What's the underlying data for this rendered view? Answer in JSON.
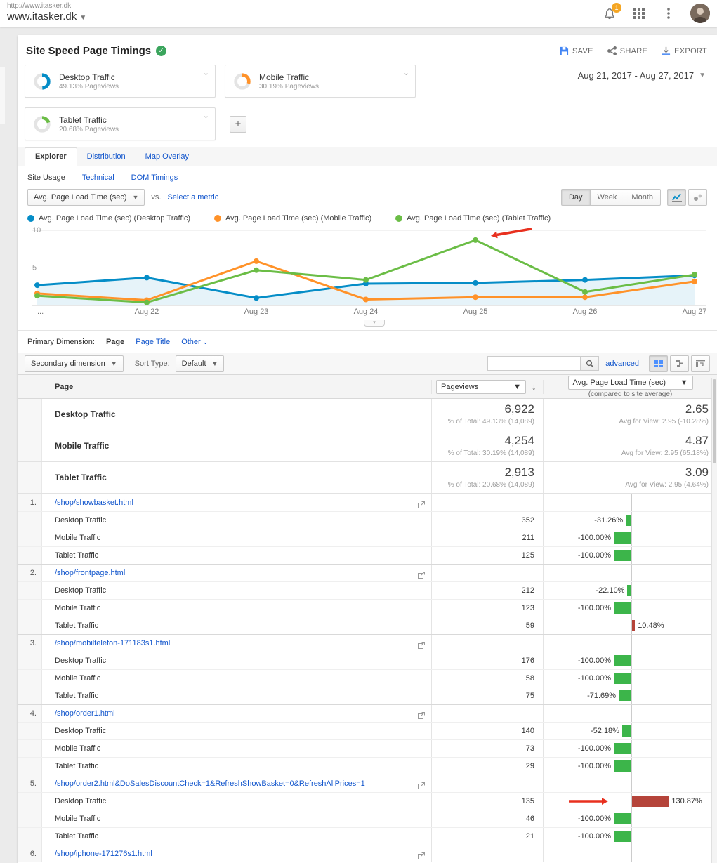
{
  "topbar": {
    "url": "http://www.itasker.dk",
    "account": "www.itasker.dk",
    "notification_badge": "1"
  },
  "header": {
    "title": "Site Speed Page Timings",
    "save": "SAVE",
    "share": "SHARE",
    "export": "EXPORT"
  },
  "date_range": "Aug 21, 2017 - Aug 27, 2017",
  "segments": [
    {
      "name": "Desktop Traffic",
      "detail": "49.13% Pageviews",
      "pct": 49.13,
      "color": "#058dc7"
    },
    {
      "name": "Mobile Traffic",
      "detail": "30.19% Pageviews",
      "pct": 30.19,
      "color": "#ff9229"
    },
    {
      "name": "Tablet Traffic",
      "detail": "20.68% Pageviews",
      "pct": 20.68,
      "color": "#6bbd46"
    }
  ],
  "tabs": {
    "explorer": "Explorer",
    "distribution": "Distribution",
    "map_overlay": "Map Overlay"
  },
  "subtabs": {
    "site_usage": "Site Usage",
    "technical": "Technical",
    "dom_timings": "DOM Timings"
  },
  "metric_bar": {
    "metric_selector": "Avg. Page Load Time (sec)",
    "vs_label": "vs.",
    "select_metric": "Select a metric",
    "granularity": [
      "Day",
      "Week",
      "Month"
    ],
    "active_granularity": "Day"
  },
  "chart_data": {
    "type": "line",
    "title": "Avg. Page Load Time (sec) by day",
    "x": [
      "...",
      "Aug 22",
      "Aug 23",
      "Aug 24",
      "Aug 25",
      "Aug 26",
      "Aug 27"
    ],
    "ylim": [
      0,
      10
    ],
    "yticks": [
      5,
      10
    ],
    "grid": true,
    "legend_position": "top",
    "series": [
      {
        "name": "Avg. Page Load Time (sec) (Desktop Traffic)",
        "color": "#058dc7",
        "area": true,
        "values": [
          2.7,
          3.7,
          1.0,
          2.9,
          3.0,
          3.4,
          4.0
        ]
      },
      {
        "name": "Avg. Page Load Time (sec) (Mobile Traffic)",
        "color": "#ff9229",
        "area": false,
        "values": [
          1.6,
          0.7,
          5.9,
          0.8,
          1.1,
          1.1,
          3.2
        ]
      },
      {
        "name": "Avg. Page Load Time (sec) (Tablet Traffic)",
        "color": "#6bbd46",
        "area": false,
        "values": [
          1.3,
          0.4,
          4.7,
          3.4,
          8.7,
          1.8,
          4.1
        ]
      }
    ],
    "annotation": {
      "type": "arrow",
      "color": "#e8301f",
      "series": 2,
      "index": 4,
      "note": "red arrow pointing at Tablet Traffic peak on Aug 25"
    }
  },
  "primary_dimension": {
    "label": "Primary Dimension:",
    "options": [
      "Page",
      "Page Title",
      "Other"
    ],
    "active": "Page"
  },
  "toolbar": {
    "secondary_dimension": "Secondary dimension",
    "sort_type_label": "Sort Type:",
    "sort_type_value": "Default",
    "search_value": "",
    "advanced": "advanced"
  },
  "table": {
    "columns": {
      "page": "Page",
      "pageviews": "Pageviews",
      "metric": "Avg. Page Load Time (sec)",
      "metric_sub": "(compared to site average)"
    },
    "bar_negative_color": "#3cb54a",
    "bar_positive_color": "#b5443a",
    "summary_rows": [
      {
        "name": "Desktop Traffic",
        "pageviews": "6,922",
        "pageviews_sub": "% of Total: 49.13% (14,089)",
        "value": "2.65",
        "value_sub": "Avg for View: 2.95 (-10.28%)"
      },
      {
        "name": "Mobile Traffic",
        "pageviews": "4,254",
        "pageviews_sub": "% of Total: 30.19% (14,089)",
        "value": "4.87",
        "value_sub": "Avg for View: 2.95 (65.18%)"
      },
      {
        "name": "Tablet Traffic",
        "pageviews": "2,913",
        "pageviews_sub": "% of Total: 20.68% (14,089)",
        "value": "3.09",
        "value_sub": "Avg for View: 2.95 (4.64%)"
      }
    ],
    "groups": [
      {
        "num": "1.",
        "page": "/shop/showbasket.html",
        "rows": [
          {
            "segment": "Desktop Traffic",
            "pageviews": "352",
            "pct": -31.26,
            "pct_label": "-31.26%"
          },
          {
            "segment": "Mobile Traffic",
            "pageviews": "211",
            "pct": -100,
            "pct_label": "-100.00%"
          },
          {
            "segment": "Tablet Traffic",
            "pageviews": "125",
            "pct": -100,
            "pct_label": "-100.00%"
          }
        ]
      },
      {
        "num": "2.",
        "page": "/shop/frontpage.html",
        "rows": [
          {
            "segment": "Desktop Traffic",
            "pageviews": "212",
            "pct": -22.1,
            "pct_label": "-22.10%"
          },
          {
            "segment": "Mobile Traffic",
            "pageviews": "123",
            "pct": -100,
            "pct_label": "-100.00%"
          },
          {
            "segment": "Tablet Traffic",
            "pageviews": "59",
            "pct": 10.48,
            "pct_label": "10.48%"
          }
        ]
      },
      {
        "num": "3.",
        "page": "/shop/mobiltelefon-171183s1.html",
        "rows": [
          {
            "segment": "Desktop Traffic",
            "pageviews": "176",
            "pct": -100,
            "pct_label": "-100.00%"
          },
          {
            "segment": "Mobile Traffic",
            "pageviews": "58",
            "pct": -100,
            "pct_label": "-100.00%"
          },
          {
            "segment": "Tablet Traffic",
            "pageviews": "75",
            "pct": -71.69,
            "pct_label": "-71.69%"
          }
        ]
      },
      {
        "num": "4.",
        "page": "/shop/order1.html",
        "rows": [
          {
            "segment": "Desktop Traffic",
            "pageviews": "140",
            "pct": -52.18,
            "pct_label": "-52.18%"
          },
          {
            "segment": "Mobile Traffic",
            "pageviews": "73",
            "pct": -100,
            "pct_label": "-100.00%"
          },
          {
            "segment": "Tablet Traffic",
            "pageviews": "29",
            "pct": -100,
            "pct_label": "-100.00%"
          }
        ]
      },
      {
        "num": "5.",
        "page": "/shop/order2.html&DoSalesDiscountCheck=1&RefreshShowBasket=0&RefreshAllPrices=1",
        "rows": [
          {
            "segment": "Desktop Traffic",
            "pageviews": "135",
            "pct": 130.87,
            "pct_label": "130.87%",
            "arrow": true
          },
          {
            "segment": "Mobile Traffic",
            "pageviews": "46",
            "pct": -100,
            "pct_label": "-100.00%"
          },
          {
            "segment": "Tablet Traffic",
            "pageviews": "21",
            "pct": -100,
            "pct_label": "-100.00%"
          }
        ]
      },
      {
        "num": "6.",
        "page": "/shop/iphone-171276s1.html",
        "rows": []
      }
    ]
  }
}
